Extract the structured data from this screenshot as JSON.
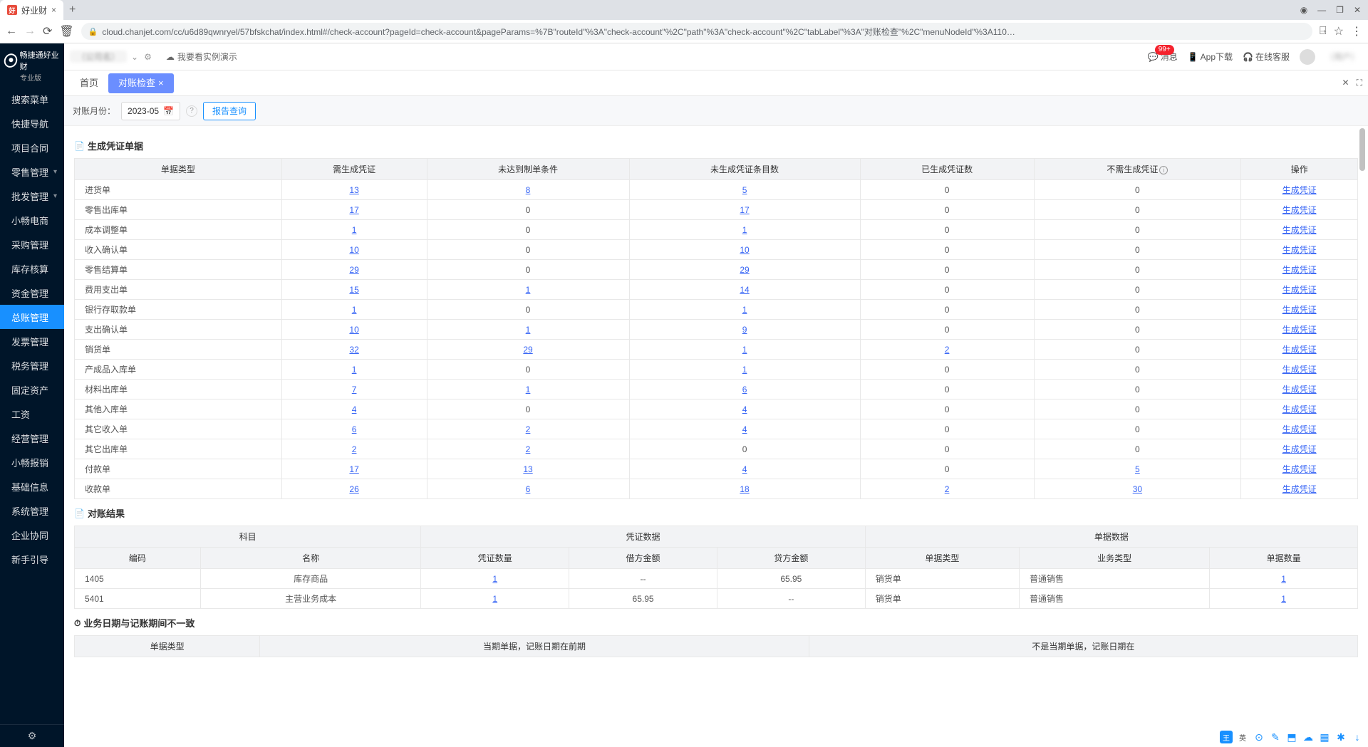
{
  "browser": {
    "tab_title": "好业财",
    "url": "cloud.chanjet.com/cc/u6d89qwnryel/57bfskchat/index.html#/check-account?pageId=check-account&pageParams=%7B\"routeId\"%3A\"check-account\"%2C\"path\"%3A\"check-account\"%2C\"tabLabel\"%3A\"对账检查\"%2C\"menuNodeId\"%3A110…"
  },
  "logo": {
    "name": "畅捷通好业财",
    "sub": "专业版"
  },
  "banner": {
    "company": "（公司名）",
    "demo": "我要看实例演示",
    "msg": "消息",
    "msg_badge": "99+",
    "app": "App下载",
    "help": "在线客服",
    "user": "（用户）"
  },
  "sidebar": [
    {
      "label": "搜索菜单",
      "chev": false
    },
    {
      "label": "快捷导航",
      "chev": false
    },
    {
      "label": "项目合同",
      "chev": false
    },
    {
      "label": "零售管理",
      "chev": true
    },
    {
      "label": "批发管理",
      "chev": true
    },
    {
      "label": "小畅电商",
      "chev": false
    },
    {
      "label": "采购管理",
      "chev": false
    },
    {
      "label": "库存核算",
      "chev": false
    },
    {
      "label": "资金管理",
      "chev": false
    },
    {
      "label": "总账管理",
      "chev": false,
      "active": true
    },
    {
      "label": "发票管理",
      "chev": false
    },
    {
      "label": "税务管理",
      "chev": false
    },
    {
      "label": "固定资产",
      "chev": false
    },
    {
      "label": "工资",
      "chev": false
    },
    {
      "label": "经营管理",
      "chev": false
    },
    {
      "label": "小畅报销",
      "chev": false
    },
    {
      "label": "基础信息",
      "chev": false
    },
    {
      "label": "系统管理",
      "chev": false
    },
    {
      "label": "企业协同",
      "chev": false
    },
    {
      "label": "新手引导",
      "chev": false
    }
  ],
  "tabs": {
    "home": "首页",
    "active": "对账检查"
  },
  "toolbar": {
    "month_label": "对账月份：",
    "month_value": "2023-05",
    "report_btn": "报告查询"
  },
  "section1": {
    "title": "生成凭证单据",
    "cols": [
      "单据类型",
      "需生成凭证",
      "未达到制单条件",
      "未生成凭证条目数",
      "已生成凭证数",
      "不需生成凭证",
      "操作"
    ],
    "op_label": "生成凭证",
    "rows": [
      {
        "type": "进货单",
        "need": "13",
        "cond": "8",
        "ungen": "5",
        "gen": "0",
        "non": "0"
      },
      {
        "type": "零售出库单",
        "need": "17",
        "cond": "0",
        "ungen": "17",
        "gen": "0",
        "non": "0"
      },
      {
        "type": "成本调整单",
        "need": "1",
        "cond": "0",
        "ungen": "1",
        "gen": "0",
        "non": "0"
      },
      {
        "type": "收入确认单",
        "need": "10",
        "cond": "0",
        "ungen": "10",
        "gen": "0",
        "non": "0"
      },
      {
        "type": "零售结算单",
        "need": "29",
        "cond": "0",
        "ungen": "29",
        "gen": "0",
        "non": "0"
      },
      {
        "type": "费用支出单",
        "need": "15",
        "cond": "1",
        "ungen": "14",
        "gen": "0",
        "non": "0"
      },
      {
        "type": "银行存取款单",
        "need": "1",
        "cond": "0",
        "ungen": "1",
        "gen": "0",
        "non": "0"
      },
      {
        "type": "支出确认单",
        "need": "10",
        "cond": "1",
        "ungen": "9",
        "gen": "0",
        "non": "0"
      },
      {
        "type": "销货单",
        "need": "32",
        "cond": "29",
        "ungen": "1",
        "gen": "2",
        "non": "0"
      },
      {
        "type": "产成品入库单",
        "need": "1",
        "cond": "0",
        "ungen": "1",
        "gen": "0",
        "non": "0"
      },
      {
        "type": "材料出库单",
        "need": "7",
        "cond": "1",
        "ungen": "6",
        "gen": "0",
        "non": "0"
      },
      {
        "type": "其他入库单",
        "need": "4",
        "cond": "0",
        "ungen": "4",
        "gen": "0",
        "non": "0"
      },
      {
        "type": "其它收入单",
        "need": "6",
        "cond": "2",
        "ungen": "4",
        "gen": "0",
        "non": "0"
      },
      {
        "type": "其它出库单",
        "need": "2",
        "cond": "2",
        "ungen": "0",
        "gen": "0",
        "non": "0"
      },
      {
        "type": "付款单",
        "need": "17",
        "cond": "13",
        "ungen": "4",
        "gen": "0",
        "non": "5"
      },
      {
        "type": "收款单",
        "need": "26",
        "cond": "6",
        "ungen": "18",
        "gen": "2",
        "non": "30"
      }
    ]
  },
  "section2": {
    "title": "对账结果",
    "group_cols": [
      "科目",
      "凭证数据",
      "单据数据"
    ],
    "sub_cols": [
      "编码",
      "名称",
      "凭证数量",
      "借方金额",
      "贷方金额",
      "单据类型",
      "业务类型",
      "单据数量"
    ],
    "rows": [
      {
        "code": "1405",
        "name": "库存商品",
        "vnum": "1",
        "debit": "--",
        "credit": "65.95",
        "btype": "销货单",
        "otype": "普通销售",
        "bnum": "1"
      },
      {
        "code": "5401",
        "name": "主营业务成本",
        "vnum": "1",
        "debit": "65.95",
        "credit": "--",
        "btype": "销货单",
        "otype": "普通销售",
        "bnum": "1"
      }
    ]
  },
  "section3": {
    "title": "业务日期与记账期间不一致",
    "cols": [
      "单据类型",
      "当期单据，记账日期在前期",
      "不是当期单据，记账日期在"
    ]
  }
}
